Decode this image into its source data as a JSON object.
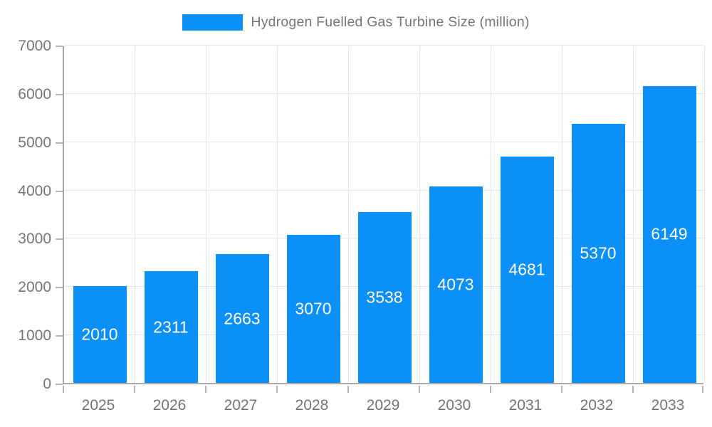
{
  "chart_data": {
    "type": "bar",
    "title": "",
    "legend": {
      "label": "Hydrogen Fuelled Gas Turbine Size (million)",
      "position": "top"
    },
    "categories": [
      "2025",
      "2026",
      "2027",
      "2028",
      "2029",
      "2030",
      "2031",
      "2032",
      "2033"
    ],
    "values": [
      2010,
      2311,
      2663,
      3070,
      3538,
      4073,
      4681,
      5370,
      6149
    ],
    "xlabel": "",
    "ylabel": "",
    "ylim": [
      0,
      7000
    ],
    "yticks": [
      0,
      1000,
      2000,
      3000,
      4000,
      5000,
      6000,
      7000
    ],
    "grid": true,
    "value_labels": "inside-center",
    "colors": {
      "bar": "#0b90f8",
      "bar_label_text": "#ffffff",
      "axis_text": "#757575",
      "grid_line": "#e4e4e4",
      "axis_line": "#a8a8a8",
      "background": "#ffffff"
    }
  }
}
